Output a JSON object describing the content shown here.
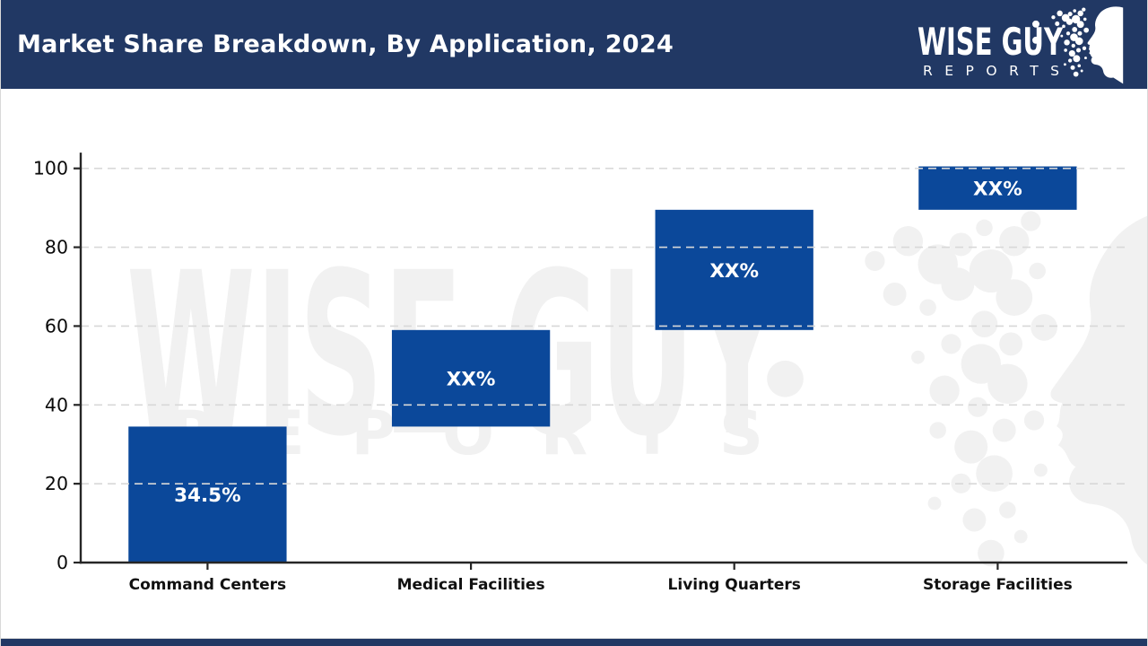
{
  "header": {
    "title": "Market Share Breakdown, By Application, 2024",
    "brand": {
      "line1": "WISE GUY",
      "line2": "REPORTS"
    },
    "colors": {
      "header_background": "#213864",
      "header_text": "#ffffff"
    }
  },
  "watermark": {
    "line1": "WISE GUY",
    "line2": "REPORTS",
    "color": "#f1f1f1"
  },
  "icons": {
    "brand_face": "face-profile-made-of-dots",
    "watermark_face": "face-profile-made-of-dots"
  },
  "chart_data": {
    "type": "bar",
    "subtype": "waterfall",
    "title": "Market Share Breakdown, By Application, 2024",
    "xlabel": "",
    "ylabel": "",
    "categories": [
      "Command Centers",
      "Medical Facilities",
      "Living Quarters",
      "Storage Facilities"
    ],
    "segments": [
      {
        "category": "Command Centers",
        "start": 0,
        "end": 34.5,
        "label": "34.5%"
      },
      {
        "category": "Medical Facilities",
        "start": 34.5,
        "end": 59,
        "label": "XX%"
      },
      {
        "category": "Living Quarters",
        "start": 59,
        "end": 89.5,
        "label": "XX%"
      },
      {
        "category": "Storage Facilities",
        "start": 89.5,
        "end": 100.5,
        "label": "XX%"
      }
    ],
    "yticks": [
      0,
      20,
      40,
      60,
      80,
      100
    ],
    "ylim": [
      0,
      104
    ],
    "grid": "dashed-horizontal-above-bars",
    "legend": "none",
    "bar_color": "#0B489A",
    "bar_label_color": "#ffffff",
    "axis_color": "#262626",
    "gridline_color": "#d8d8d8",
    "tick_label_color": "#0a0a0a"
  }
}
